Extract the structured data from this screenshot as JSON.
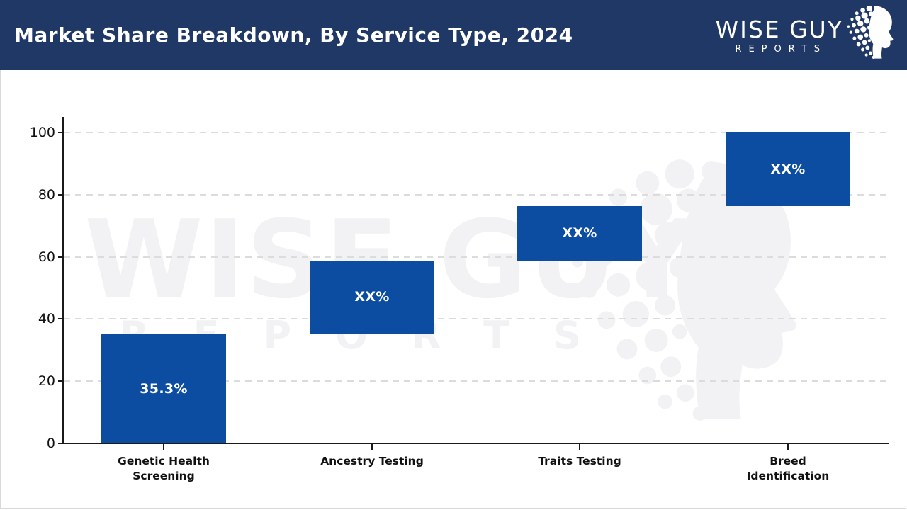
{
  "header": {
    "title": "Market Share Breakdown, By Service Type, 2024",
    "logo": {
      "line1": "WISE GUY",
      "line2": "REPORTS"
    }
  },
  "watermark": {
    "line1": "WISE GUY",
    "line2": "REPORTS"
  },
  "chart_data": {
    "type": "bar",
    "subtype": "waterfall",
    "title": "Market Share Breakdown, By Service Type, 2024",
    "xlabel": "",
    "ylabel": "",
    "ylim": [
      0,
      100
    ],
    "y_ticks": [
      0,
      20,
      40,
      60,
      80,
      100
    ],
    "grid": "dashed-horizontal",
    "legend": "none",
    "categories": [
      "Genetic Health\nScreening",
      "Ancestry Testing",
      "Traits Testing",
      "Breed\nIdentification"
    ],
    "segments": [
      {
        "category": "Genetic Health Screening",
        "start": 0,
        "end": 35.3,
        "label": "35.3%"
      },
      {
        "category": "Ancestry Testing",
        "start": 35.3,
        "end": 58.8,
        "label": "XX%"
      },
      {
        "category": "Traits Testing",
        "start": 58.8,
        "end": 76.3,
        "label": "XX%"
      },
      {
        "category": "Breed Identification",
        "start": 76.3,
        "end": 100,
        "label": "XX%"
      }
    ]
  },
  "colors": {
    "header_bg": "#1F3866",
    "bar": "#0C4DA2",
    "bar_label": "#FFFFFF",
    "watermark": "#F2F2F4",
    "gridline": "#DCDCDC",
    "axis": "#1A1A1A",
    "text": "#111111"
  }
}
